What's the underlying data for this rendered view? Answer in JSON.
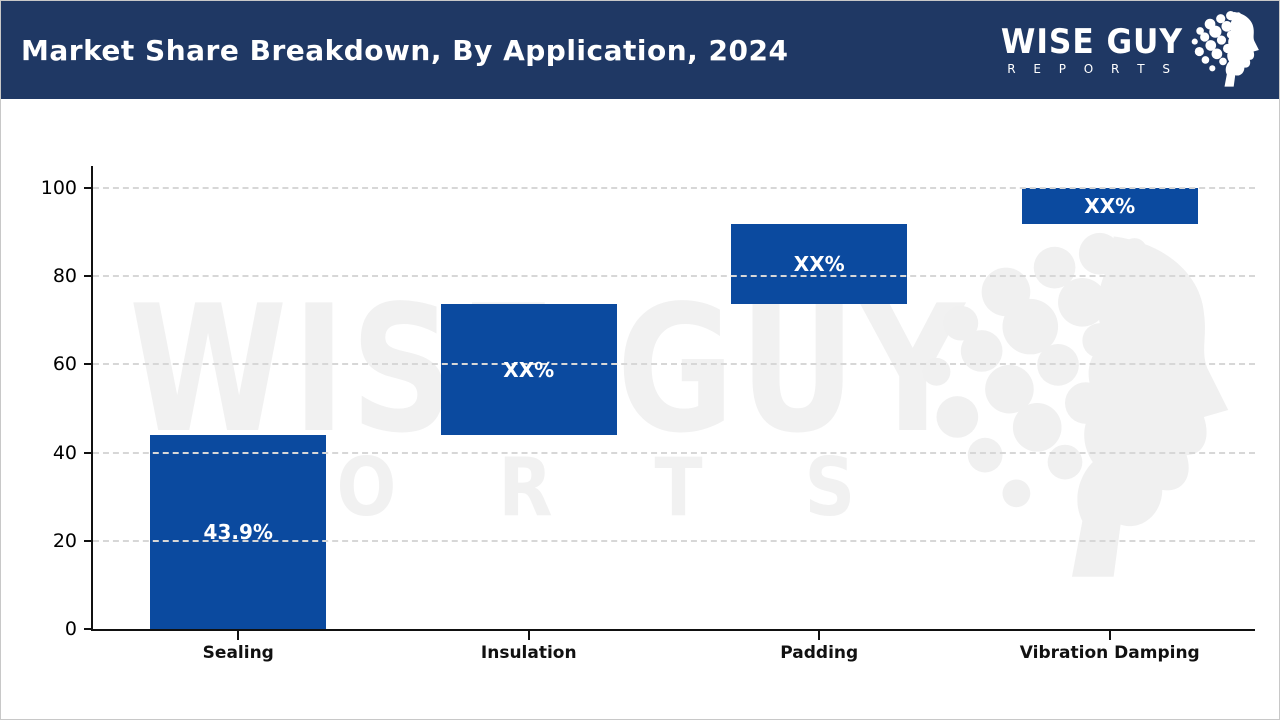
{
  "header": {
    "title": "Market Share Breakdown, By Application, 2024",
    "logo_line1": "WISE GUY",
    "logo_line2": "R E P O R T S",
    "bg_color": "#1f3864"
  },
  "watermark": {
    "line1": "WISE GUY",
    "line2": "P O R T S"
  },
  "chart_data": {
    "type": "bar",
    "subtype": "waterfall",
    "title": "Market Share Breakdown, By Application, 2024",
    "categories": [
      "Sealing",
      "Insulation",
      "Padding",
      "Vibration Damping"
    ],
    "segments": [
      {
        "category": "Sealing",
        "start": 0,
        "end": 43.9,
        "label": "43.9%"
      },
      {
        "category": "Insulation",
        "start": 43.9,
        "end": 73.7,
        "label": "XX%"
      },
      {
        "category": "Padding",
        "start": 73.7,
        "end": 91.9,
        "label": "XX%"
      },
      {
        "category": "Vibration Damping",
        "start": 91.9,
        "end": 100,
        "label": "XX%"
      }
    ],
    "ylim": [
      0,
      100
    ],
    "yticks": [
      0,
      20,
      40,
      60,
      80,
      100
    ],
    "grid": "horizontal dashed, drawn over bars",
    "legend": "none",
    "bar_color": "#0b4a9f",
    "bar_label_color": "#ffffff",
    "axis_color": "#111111",
    "grid_color": "#d7d7d7"
  }
}
